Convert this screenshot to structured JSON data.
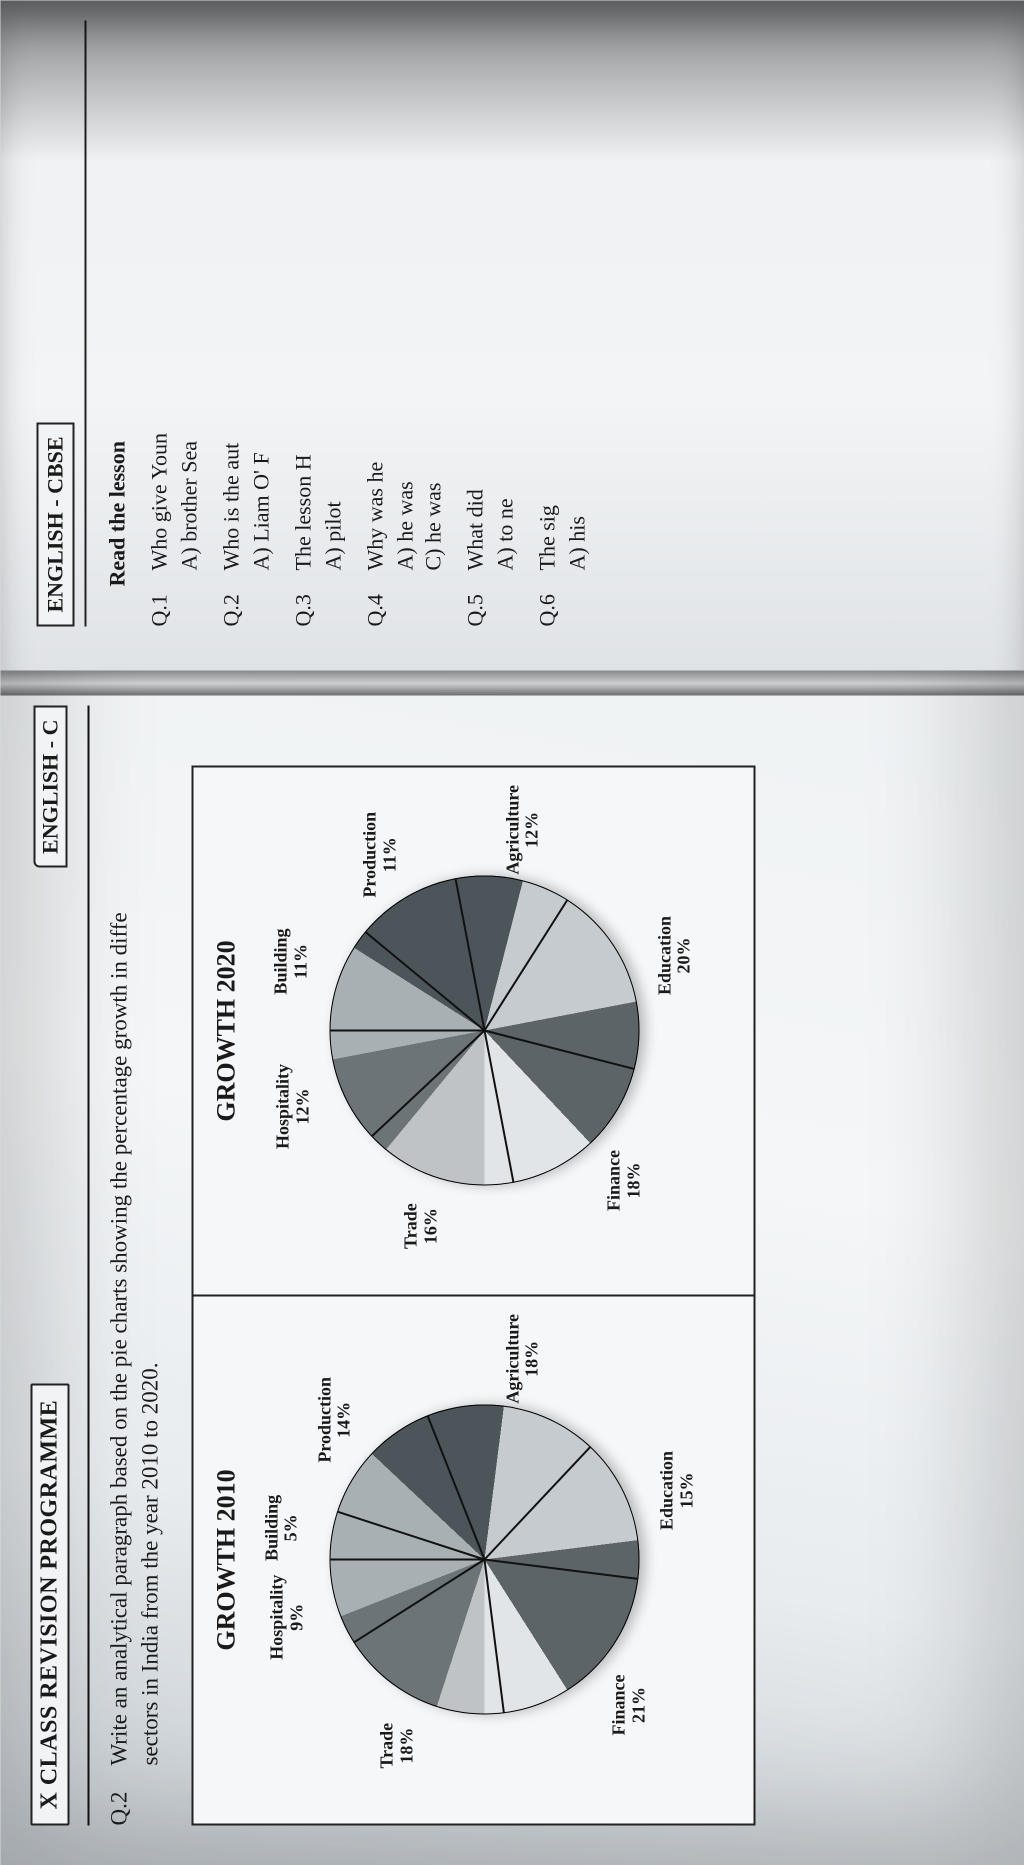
{
  "header": {
    "programme": "X CLASS REVISION PROGRAMME",
    "subject_partial": "ENGLISH - C"
  },
  "question": {
    "number": "Q.2",
    "text_line1": "Write an analytical paragraph based on the pie charts showing the percentage growth in diffe",
    "text_line2": "sectors in India from the year 2010 to 2020."
  },
  "chart_2010": {
    "type": "pie",
    "title": "GROWTH 2010",
    "background": "#f6f7f8",
    "slice_border": "#111111",
    "title_fontsize": 26,
    "label_fontsize": 18,
    "slices": [
      {
        "label": "Building",
        "value": 5,
        "color": "#bfc3c6"
      },
      {
        "label": "Production",
        "value": 14,
        "color": "#6d7478"
      },
      {
        "label": "Agriculture",
        "value": 18,
        "color": "#a9b0b4"
      },
      {
        "label": "Education",
        "value": 15,
        "color": "#4c555a"
      },
      {
        "label": "Finance",
        "value": 21,
        "color": "#c5cbce"
      },
      {
        "label": "Trade",
        "value": 18,
        "color": "#5c6468"
      },
      {
        "label": "Hospitality",
        "value": 9,
        "color": "#e2e5e7"
      }
    ]
  },
  "chart_2020": {
    "type": "pie",
    "title": "GROWTH 2020",
    "background": "#f6f7f8",
    "slice_border": "#111111",
    "title_fontsize": 26,
    "label_fontsize": 18,
    "slices": [
      {
        "label": "Building",
        "value": 11,
        "color": "#bfc3c6"
      },
      {
        "label": "Production",
        "value": 11,
        "color": "#6d7478"
      },
      {
        "label": "Agriculture",
        "value": 12,
        "color": "#a9b0b4"
      },
      {
        "label": "Education",
        "value": 20,
        "color": "#4c555a"
      },
      {
        "label": "Finance",
        "value": 18,
        "color": "#c5cbce"
      },
      {
        "label": "Trade",
        "value": 16,
        "color": "#5c6468"
      },
      {
        "label": "Hospitality",
        "value": 12,
        "color": "#e2e5e7"
      }
    ]
  },
  "right_page": {
    "badge": "ENGLISH - CBSE",
    "read_lesson": "Read the lesson",
    "items": [
      {
        "num": "Q.1",
        "text": "Who give Youn",
        "opt": "A) brother Sea"
      },
      {
        "num": "Q.2",
        "text": "Who is the aut",
        "opt": "A) Liam O' F"
      },
      {
        "num": "Q.3",
        "text": "The lesson H",
        "opt": "A) pilot"
      },
      {
        "num": "Q.4",
        "text": "Why was he",
        "opt": "A) he was",
        "opt2": "C) he was"
      },
      {
        "num": "Q.5",
        "text": "What did",
        "opt": "A) to ne"
      },
      {
        "num": "Q.6",
        "text": "The sig",
        "opt": "A) his"
      }
    ]
  }
}
